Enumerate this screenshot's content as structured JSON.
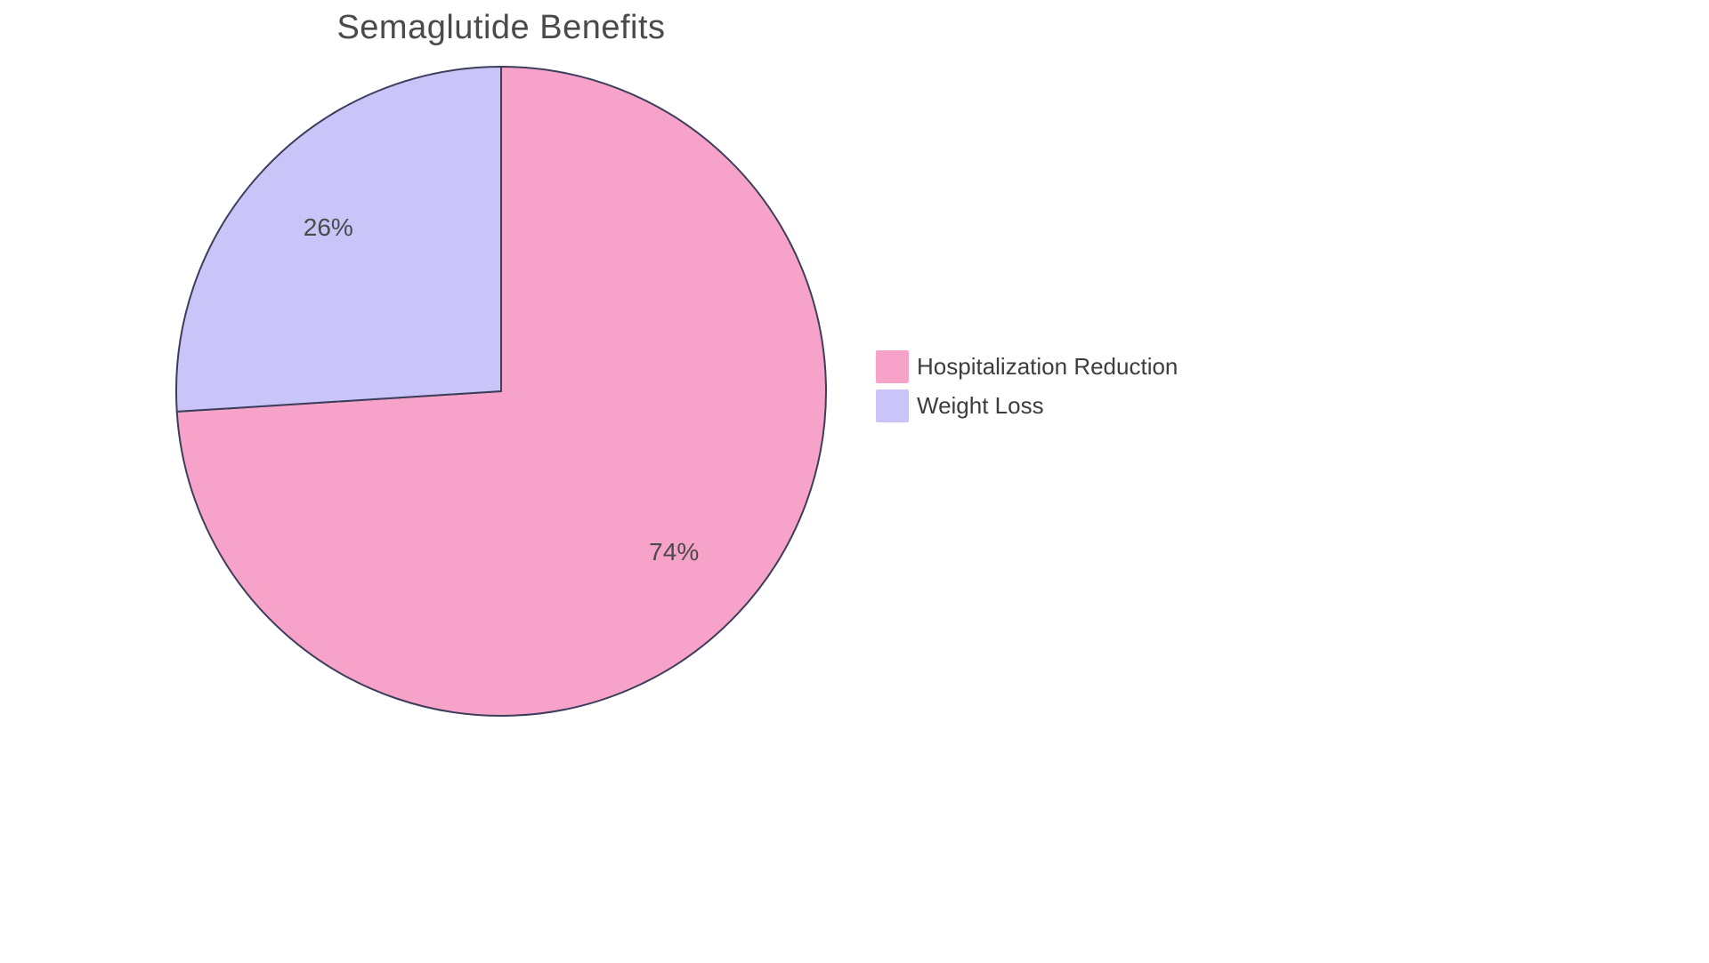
{
  "title": "Semaglutide Benefits",
  "chart_data": {
    "type": "pie",
    "title": "Semaglutide Benefits",
    "labels": [
      "Hospitalization Reduction",
      "Weight Loss"
    ],
    "values": [
      74,
      26
    ],
    "display_labels": [
      "74%",
      "26%"
    ],
    "colors": [
      "#F7A3C9",
      "#C9C5F8"
    ],
    "stroke_color": "#3D3D5C",
    "start_angle_deg": 0,
    "direction": "clockwise",
    "legend_position": "right",
    "label_position": "inside"
  }
}
